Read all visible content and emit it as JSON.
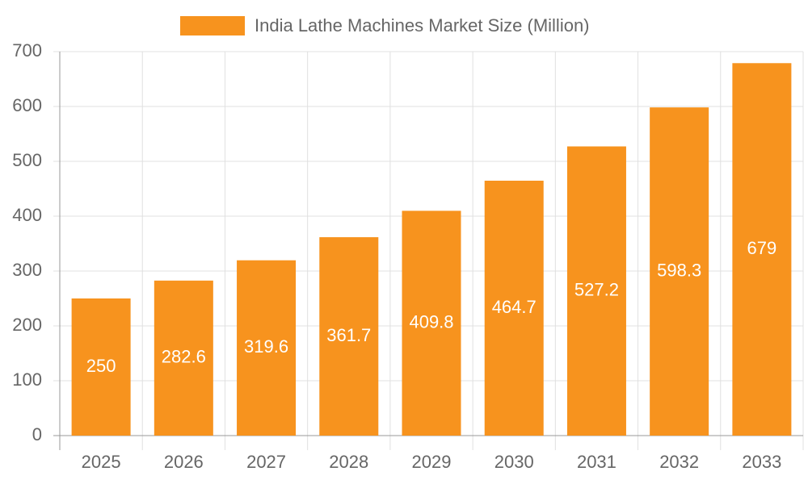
{
  "chart_data": {
    "type": "bar",
    "legend_label": "India Lathe Machines Market Size (Million)",
    "categories": [
      "2025",
      "2026",
      "2027",
      "2028",
      "2029",
      "2030",
      "2031",
      "2032",
      "2033"
    ],
    "values": [
      250,
      282.6,
      319.6,
      361.7,
      409.8,
      464.7,
      527.2,
      598.3,
      679
    ],
    "color": "#f7931e",
    "ylim": [
      0,
      700
    ],
    "yticks": [
      0,
      100,
      200,
      300,
      400,
      500,
      600,
      700
    ],
    "grid": true,
    "legend": "top"
  }
}
